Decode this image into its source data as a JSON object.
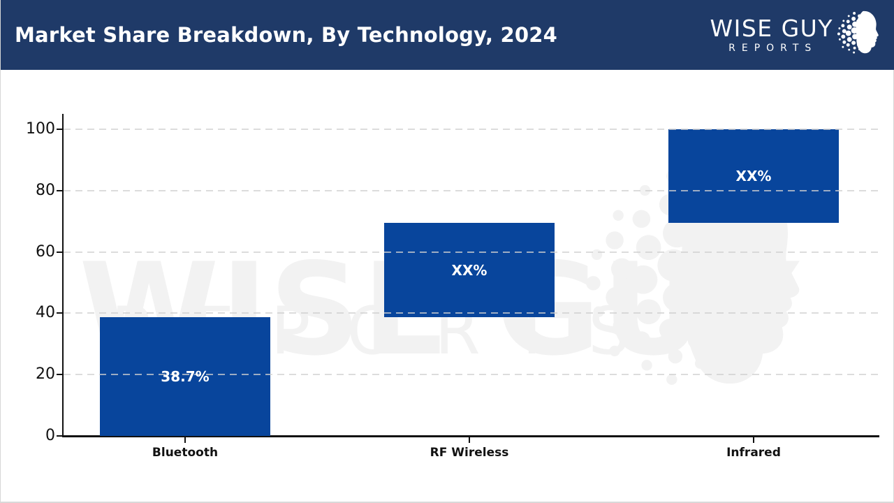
{
  "header": {
    "title": "Market Share Breakdown, By Technology, 2024",
    "logo": {
      "brand": "WISE GUY",
      "sub": "REPORTS"
    }
  },
  "watermark": {
    "line1": "WISE GUY",
    "line2": "REPORTS"
  },
  "chart_data": {
    "type": "bar",
    "subtype": "waterfall-stacked-range",
    "title": "Market Share Breakdown, By Technology, 2024",
    "categories": [
      "Bluetooth",
      "RF Wireless",
      "Infrared"
    ],
    "segments": [
      {
        "category": "Bluetooth",
        "start": 0,
        "end": 38.7,
        "label": "38.7%"
      },
      {
        "category": "RF Wireless",
        "start": 38.7,
        "end": 69.4,
        "label": "XX%"
      },
      {
        "category": "Infrared",
        "start": 69.4,
        "end": 100,
        "label": "XX%"
      }
    ],
    "yticks": [
      0,
      20,
      40,
      60,
      80,
      100
    ],
    "ylim": [
      0,
      105
    ],
    "xlabel": "",
    "ylabel": "",
    "grid": "horizontal-dashed",
    "legend": "none",
    "bar_color": "#08459c",
    "bar_label_color": "#ffffff",
    "axis_color": "#111111",
    "grid_color": "#dcdcdc"
  },
  "colors": {
    "header_bg": "#1f3a68",
    "watermark": "#f2f2f2",
    "page_bg": "#ffffff"
  }
}
